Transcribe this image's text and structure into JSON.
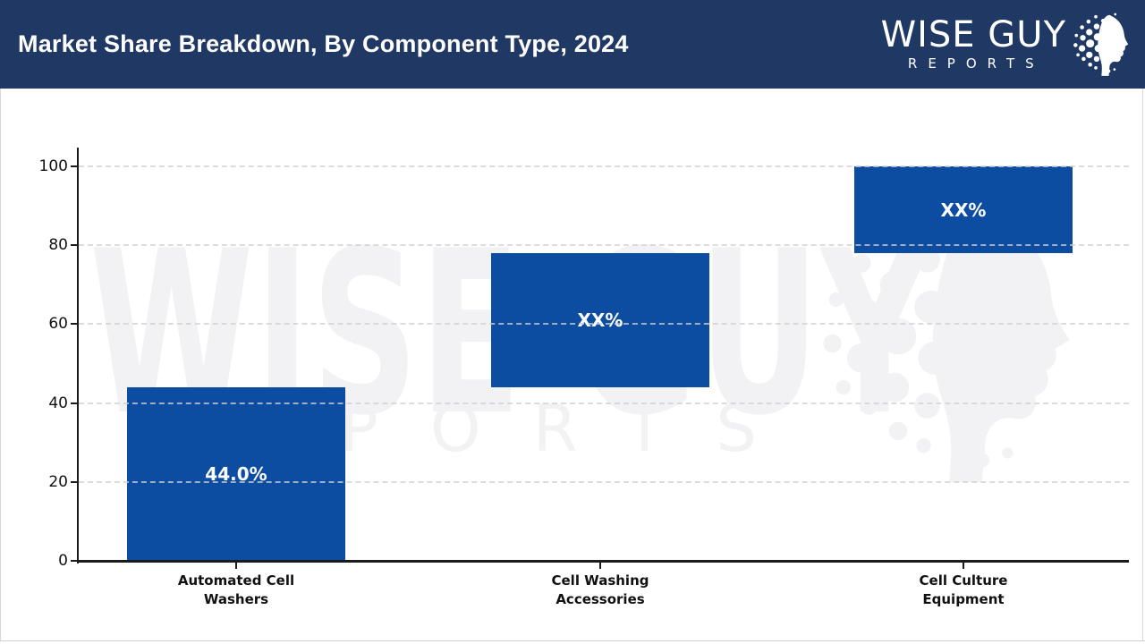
{
  "header": {
    "title": "Market Share Breakdown, By Component Type, 2024",
    "bg_color": "#1F3864",
    "logo": {
      "wordmark": "WISE GUY",
      "subtext": "REPORTS"
    }
  },
  "watermark": {
    "wordmark": "WISE GUY",
    "subtext": "REPORTS"
  },
  "chart_data": {
    "type": "bar",
    "subtype": "floating-waterfall",
    "title": "Market Share Breakdown, By Component Type, 2024",
    "categories": [
      "Automated Cell\nWashers",
      "Cell Washing\nAccessories",
      "Cell Culture\nEquipment"
    ],
    "bars": [
      {
        "category": "Automated Cell Washers",
        "start": 0,
        "end": 44,
        "label": "44.0%"
      },
      {
        "category": "Cell Washing Accessories",
        "start": 44,
        "end": 78,
        "label": "XX%"
      },
      {
        "category": "Cell Culture Equipment",
        "start": 78,
        "end": 100,
        "label": "XX%"
      }
    ],
    "xlabel": "",
    "ylabel": "",
    "ylim": [
      0,
      100
    ],
    "yticks": [
      0,
      20,
      40,
      60,
      80,
      100
    ],
    "grid": "horizontal-dashed",
    "grid_color": "#d9d9d9",
    "bar_color": "#0C4DA2",
    "value_label_color": "#FFFFFF",
    "axis_color": "#1a1a1a",
    "legend": "none"
  }
}
